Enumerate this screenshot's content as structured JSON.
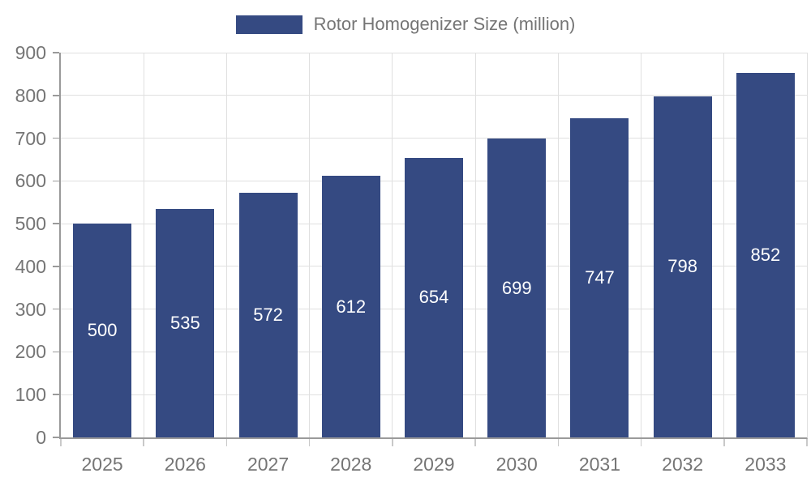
{
  "chart_data": {
    "type": "bar",
    "title": "Rotor Homogenizer Size (million)",
    "legend_label": "Rotor Homogenizer Size (million)",
    "legend_position": "top-center",
    "categories": [
      "2025",
      "2026",
      "2027",
      "2028",
      "2029",
      "2030",
      "2031",
      "2032",
      "2033"
    ],
    "series": [
      {
        "name": "Rotor Homogenizer Size (million)",
        "values": [
          500,
          535,
          572,
          612,
          654,
          699,
          747,
          798,
          852
        ]
      }
    ],
    "xlabel": "",
    "ylabel": "",
    "ylim": [
      0,
      900
    ],
    "ytick_step": 100,
    "ytick_labels": [
      "0",
      "100",
      "200",
      "300",
      "400",
      "500",
      "600",
      "700",
      "800",
      "900"
    ],
    "grid": true,
    "value_labels_shown": true,
    "colors": {
      "bar": "#354a82",
      "grid": "#e0e0e0",
      "axis": "#9a9a9a",
      "tick_label": "#757575",
      "legend_text": "#757575",
      "value_label": "#ffffff",
      "background": "#ffffff"
    }
  }
}
